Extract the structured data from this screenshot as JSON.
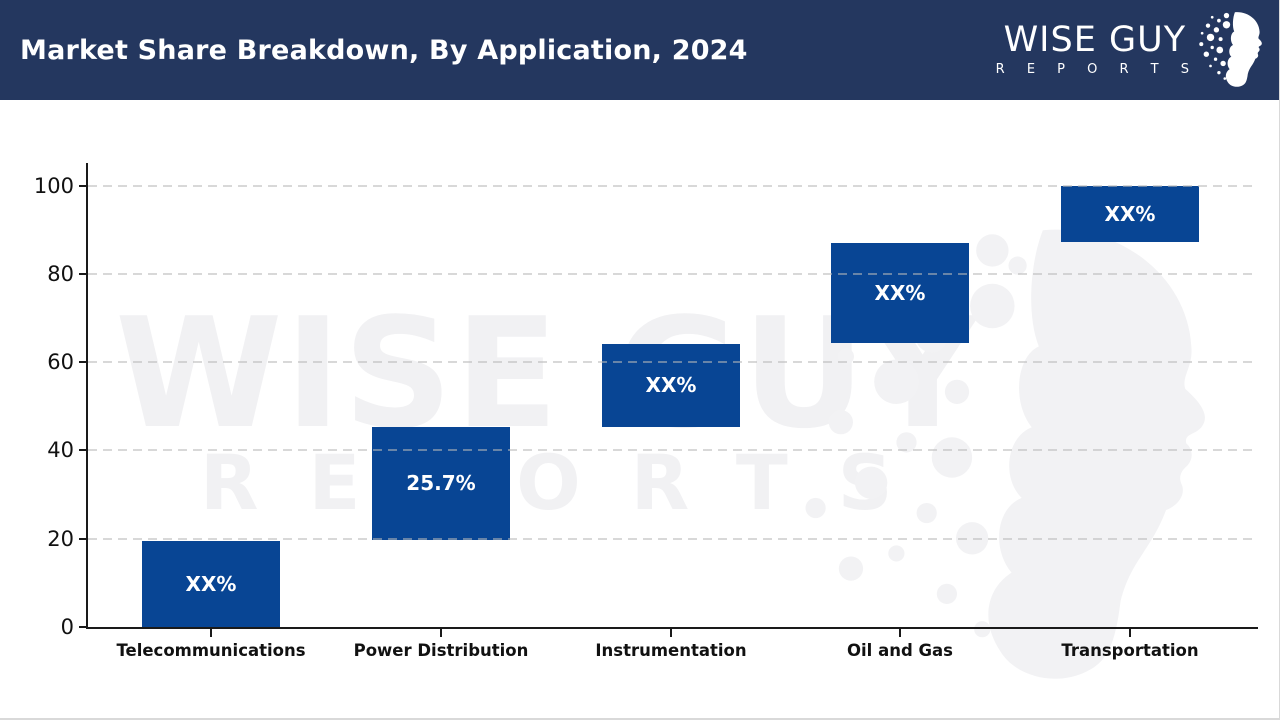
{
  "header": {
    "title": "Market Share Breakdown, By Application, 2024",
    "logo": {
      "name": "WISE GUY",
      "subtitle": "R E P O R T S"
    }
  },
  "watermark": {
    "line1": "WISE GUY",
    "line2": "REPORTS"
  },
  "colors": {
    "header_bg": "#24375f",
    "bar": "#084594",
    "bar_label": "#ffffff",
    "axis": "#1a1a1a",
    "gridline": "#dcdcdc",
    "watermark": "#f1f1f3"
  },
  "chart_data": {
    "type": "bar",
    "subtype": "waterfall",
    "title": "Market Share Breakdown, By Application, 2024",
    "xlabel": "",
    "ylabel": "",
    "categories": [
      "Telecommunications",
      "Power Distribution",
      "Instrumentation",
      "Oil and Gas",
      "Transportation"
    ],
    "bars": [
      {
        "category": "Telecommunications",
        "from": 0,
        "to": 19.5,
        "label": "XX%"
      },
      {
        "category": "Power Distribution",
        "from": 19.7,
        "to": 45.4,
        "label": "25.7%"
      },
      {
        "category": "Instrumentation",
        "from": 45.4,
        "to": 64.2,
        "label": "XX%"
      },
      {
        "category": "Oil and Gas",
        "from": 64.3,
        "to": 87.1,
        "label": "XX%"
      },
      {
        "category": "Transportation",
        "from": 87.2,
        "to": 100.0,
        "label": "XX%"
      }
    ],
    "increments": [
      19.5,
      25.7,
      18.8,
      22.8,
      12.8
    ],
    "yticks": [
      0,
      20,
      40,
      60,
      80,
      100
    ],
    "ylim": [
      0,
      105
    ],
    "grid": "horizontal-dashed",
    "legend": "none"
  }
}
